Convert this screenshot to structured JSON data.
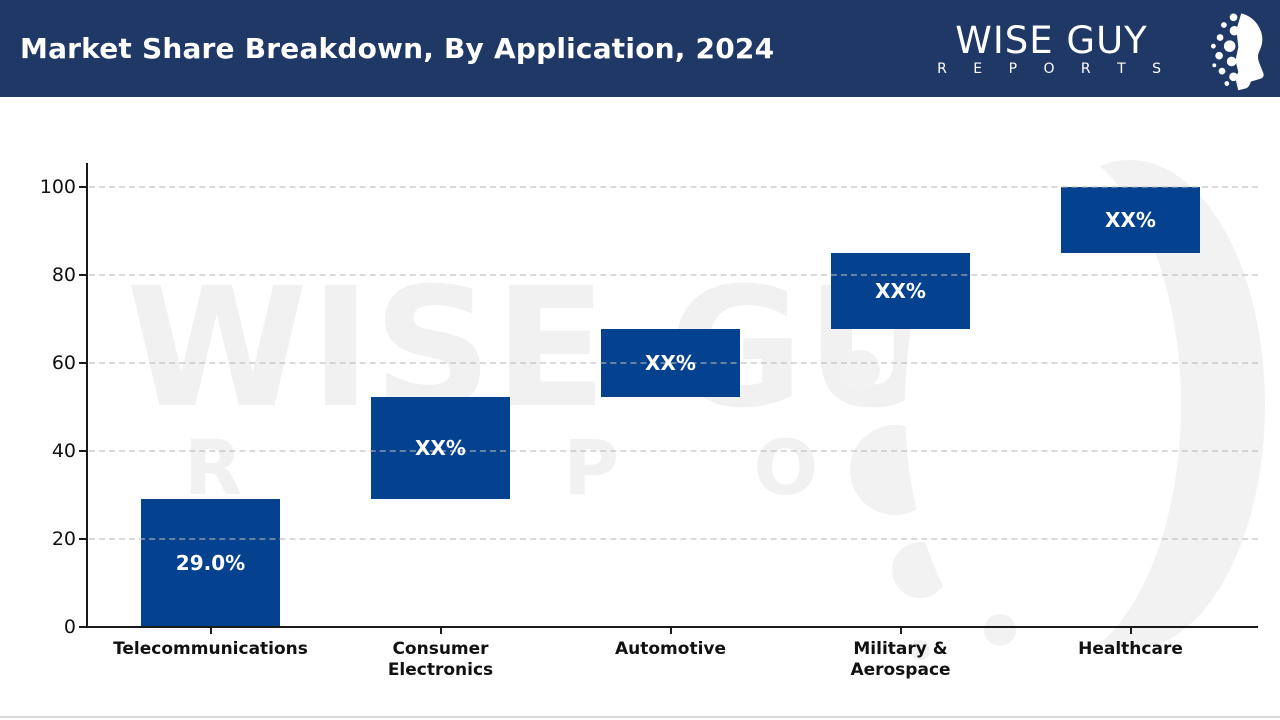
{
  "header": {
    "title": "Market Share Breakdown, By Application, 2024",
    "background_color": "#1f3866",
    "logo": {
      "line1": "WISE GUY",
      "line2": "R E P O R T S",
      "head_icon": "dotted-head-profile-icon"
    }
  },
  "watermark": {
    "line1": "WISE GUY",
    "line2": "R E P O R T S"
  },
  "chart_data": {
    "type": "bar",
    "subtype": "waterfall",
    "title": "Market Share Breakdown, By Application, 2024",
    "categories": [
      "Telecommunications",
      "Consumer\nElectronics",
      "Automotive",
      "Military &\nAerospace",
      "Healthcare"
    ],
    "bars": [
      {
        "category": "Telecommunications",
        "label": "29.0%",
        "start": 0,
        "end": 29
      },
      {
        "category": "Consumer Electronics",
        "label": "XX%",
        "start": 29,
        "end": 52.2
      },
      {
        "category": "Automotive",
        "label": "XX%",
        "start": 52.2,
        "end": 67.7
      },
      {
        "category": "Military & Aerospace",
        "label": "XX%",
        "start": 67.7,
        "end": 85.1
      },
      {
        "category": "Healthcare",
        "label": "XX%",
        "start": 85.1,
        "end": 100
      }
    ],
    "xlabel": "",
    "ylabel": "",
    "yticks": [
      0,
      20,
      40,
      60,
      80,
      100
    ],
    "ylim": [
      0,
      105.5
    ],
    "grid": "horizontal-dashed",
    "legend": "none",
    "colors": {
      "bar": "#04418f",
      "bar_label": "#ffffff",
      "grid": "#bababa",
      "axis": "#1a1a1a",
      "tick_label": "#111111",
      "header_bg": "#1f3866",
      "watermark": "#f1f1f1"
    }
  }
}
